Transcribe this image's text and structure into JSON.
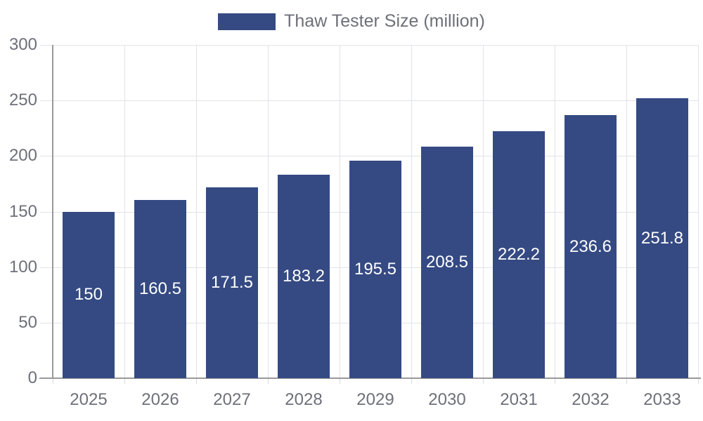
{
  "legend": {
    "label": "Thaw Tester Size (million)"
  },
  "colors": {
    "background": "#FFFFFF",
    "bar": "#354A83",
    "axis_text": "#6E7079",
    "gridline": "#E2E3E8",
    "axis_line": "#999999",
    "tick": "#D7D9DE",
    "value_label": "#FFFFFF"
  },
  "chart_data": {
    "type": "bar",
    "title": "Thaw Tester Size (million)",
    "categories": [
      "2025",
      "2026",
      "2027",
      "2028",
      "2029",
      "2030",
      "2031",
      "2032",
      "2033"
    ],
    "series": [
      {
        "name": "Thaw Tester Size (million)",
        "values": [
          150,
          160.5,
          171.5,
          183.2,
          195.5,
          208.5,
          222.2,
          236.6,
          251.8
        ],
        "value_labels": [
          "150",
          "160.5",
          "171.5",
          "183.2",
          "195.5",
          "208.5",
          "222.2",
          "236.6",
          "251.8"
        ],
        "color": "#354A83"
      }
    ],
    "xlabel": "",
    "ylabel": "",
    "ylim": [
      0,
      300
    ],
    "yticks": [
      0,
      50,
      100,
      150,
      200,
      250,
      300
    ],
    "grid": true,
    "legend_position": "top-center",
    "value_label_position": "inside-center"
  }
}
